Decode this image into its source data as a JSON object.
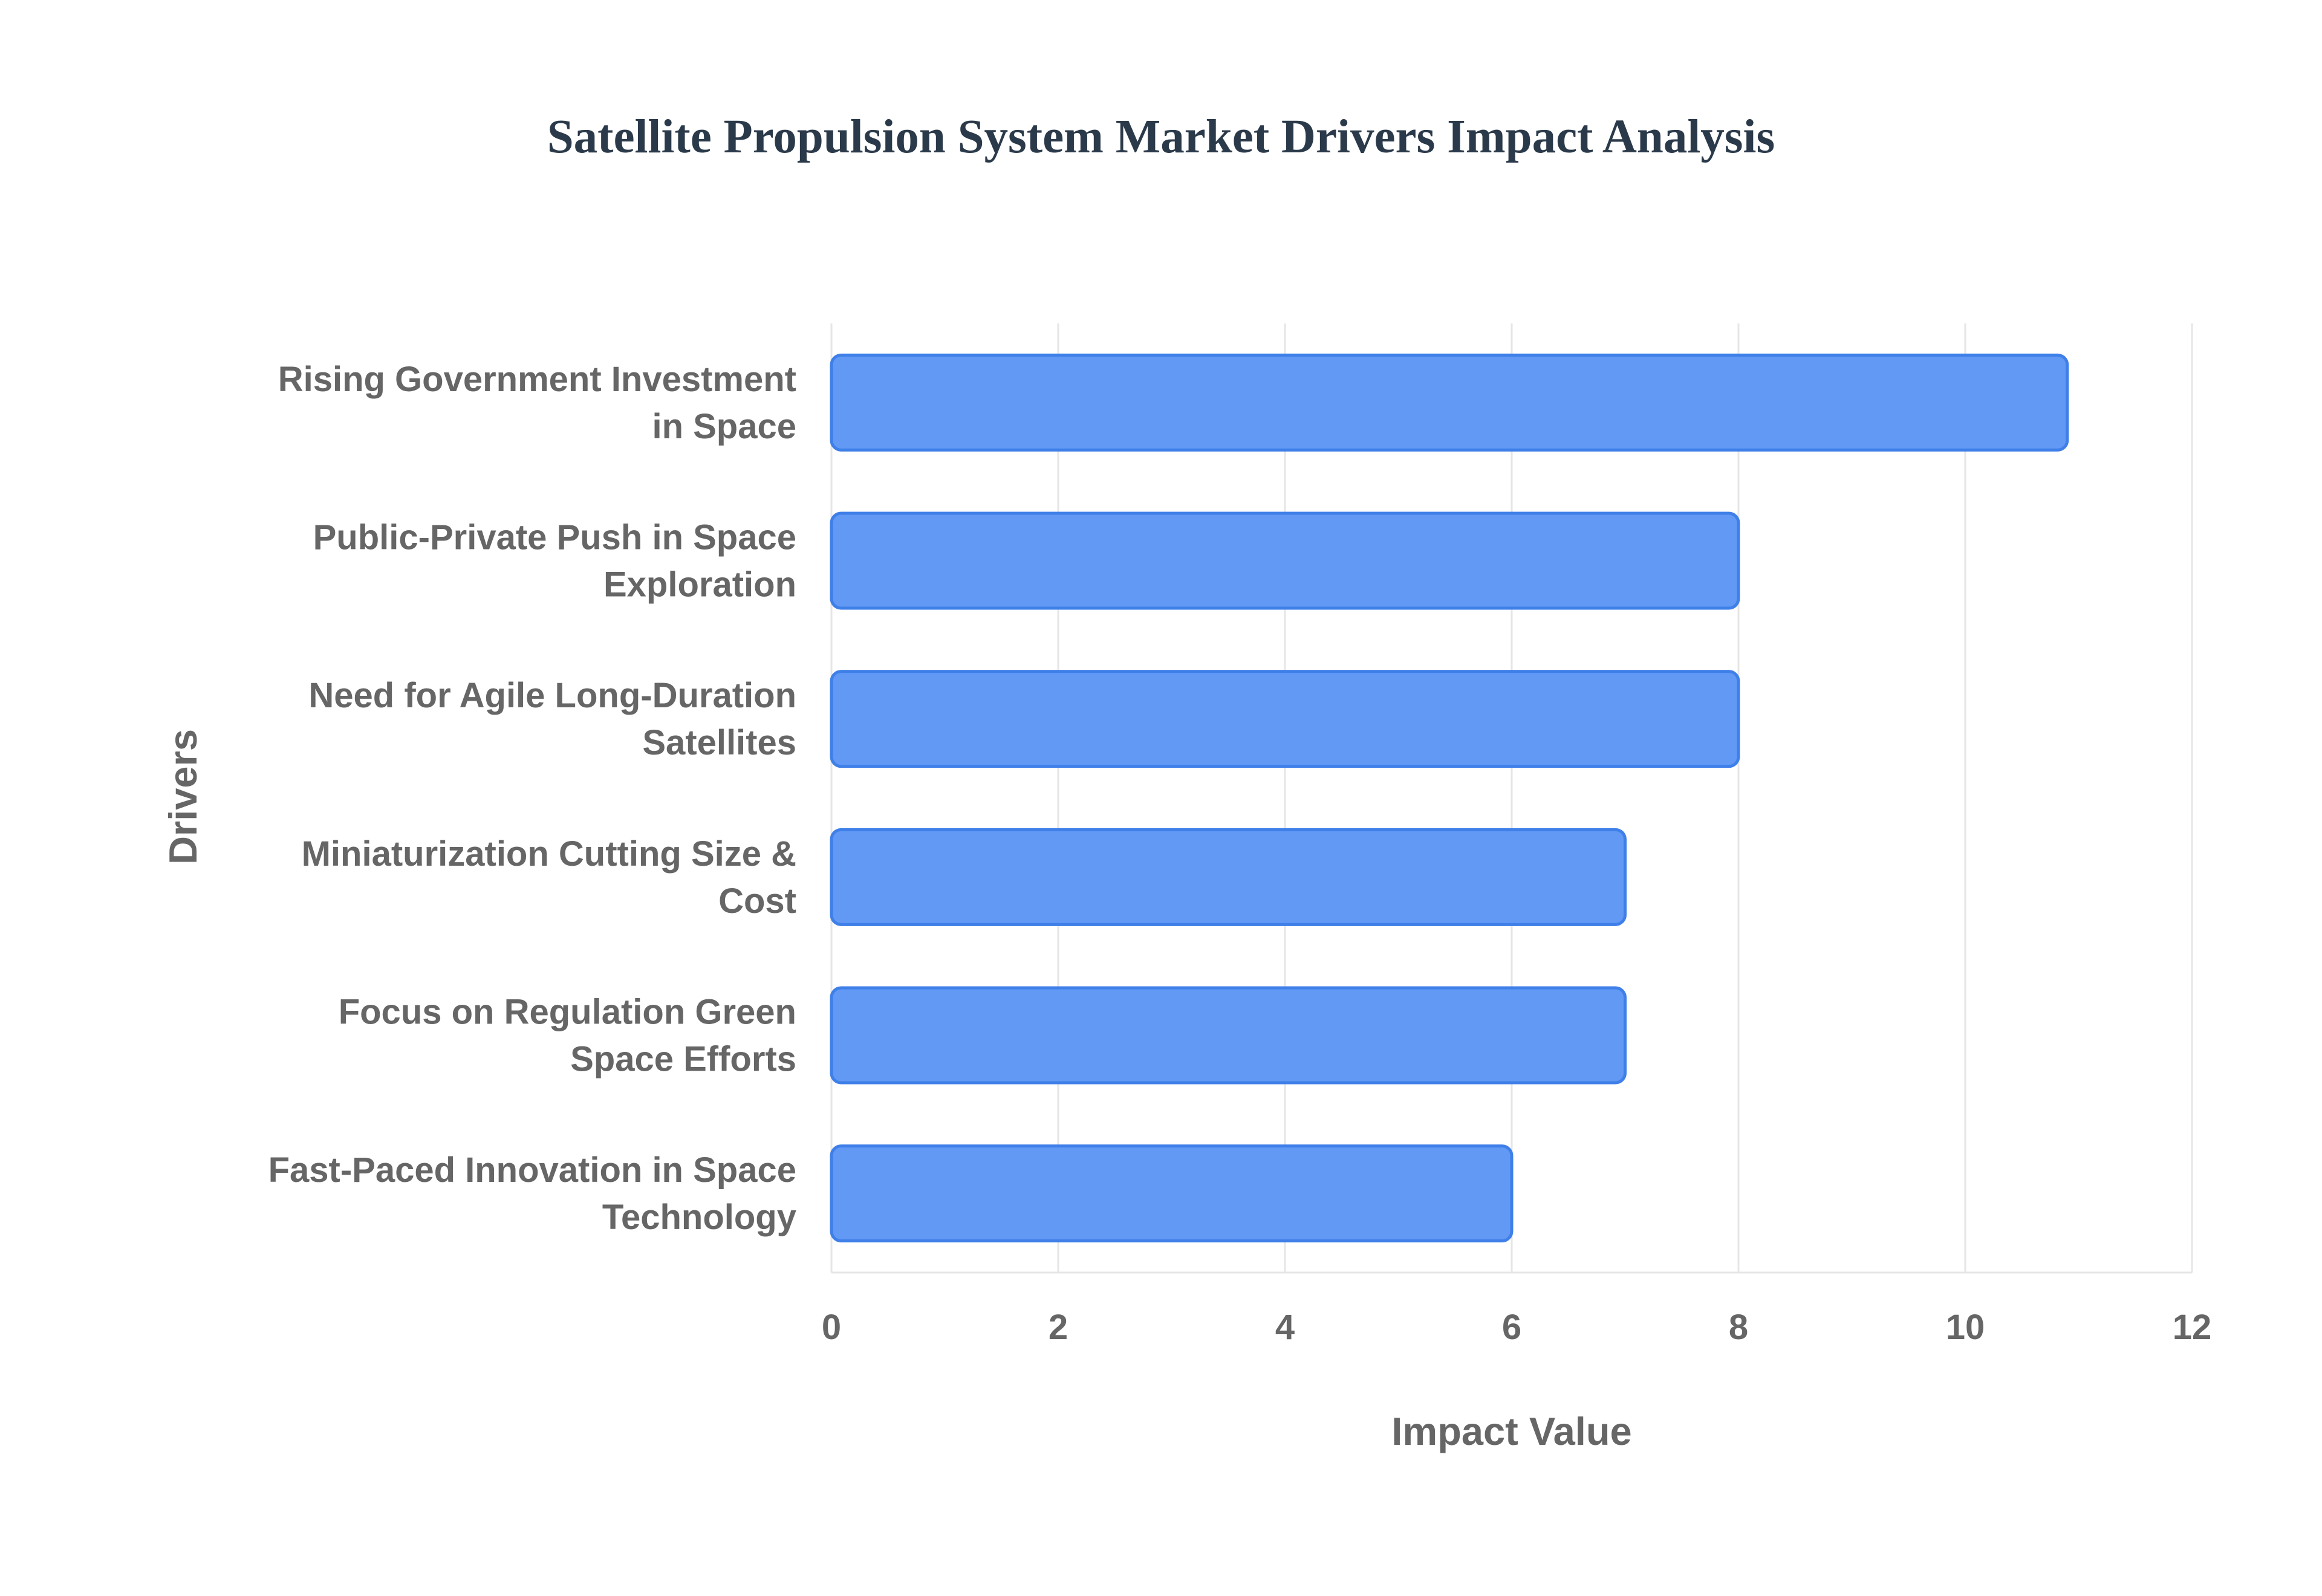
{
  "chart_data": {
    "type": "bar",
    "orientation": "horizontal",
    "title": "Satellite Propulsion System Market Drivers Impact Analysis",
    "xlabel": "Impact Value",
    "ylabel": "Drivers",
    "xlim": [
      0,
      12
    ],
    "x_ticks": [
      "0",
      "2",
      "4",
      "6",
      "8",
      "10",
      "12"
    ],
    "grid": true,
    "categories": [
      [
        "Rising Government Investment",
        "in Space"
      ],
      [
        "Public-Private Push in Space",
        "Exploration"
      ],
      [
        "Need for Agile Long-Duration",
        "Satellites"
      ],
      [
        "Miniaturization Cutting Size &",
        "Cost"
      ],
      [
        "Focus on Regulation Green",
        "Space Efforts"
      ],
      [
        "Fast-Paced Innovation in Space",
        "Technology"
      ]
    ],
    "values": [
      10.9,
      8,
      8,
      7,
      7,
      6
    ],
    "bar_color": "#6199f5",
    "bar_border_color": "#3f7fe8"
  }
}
